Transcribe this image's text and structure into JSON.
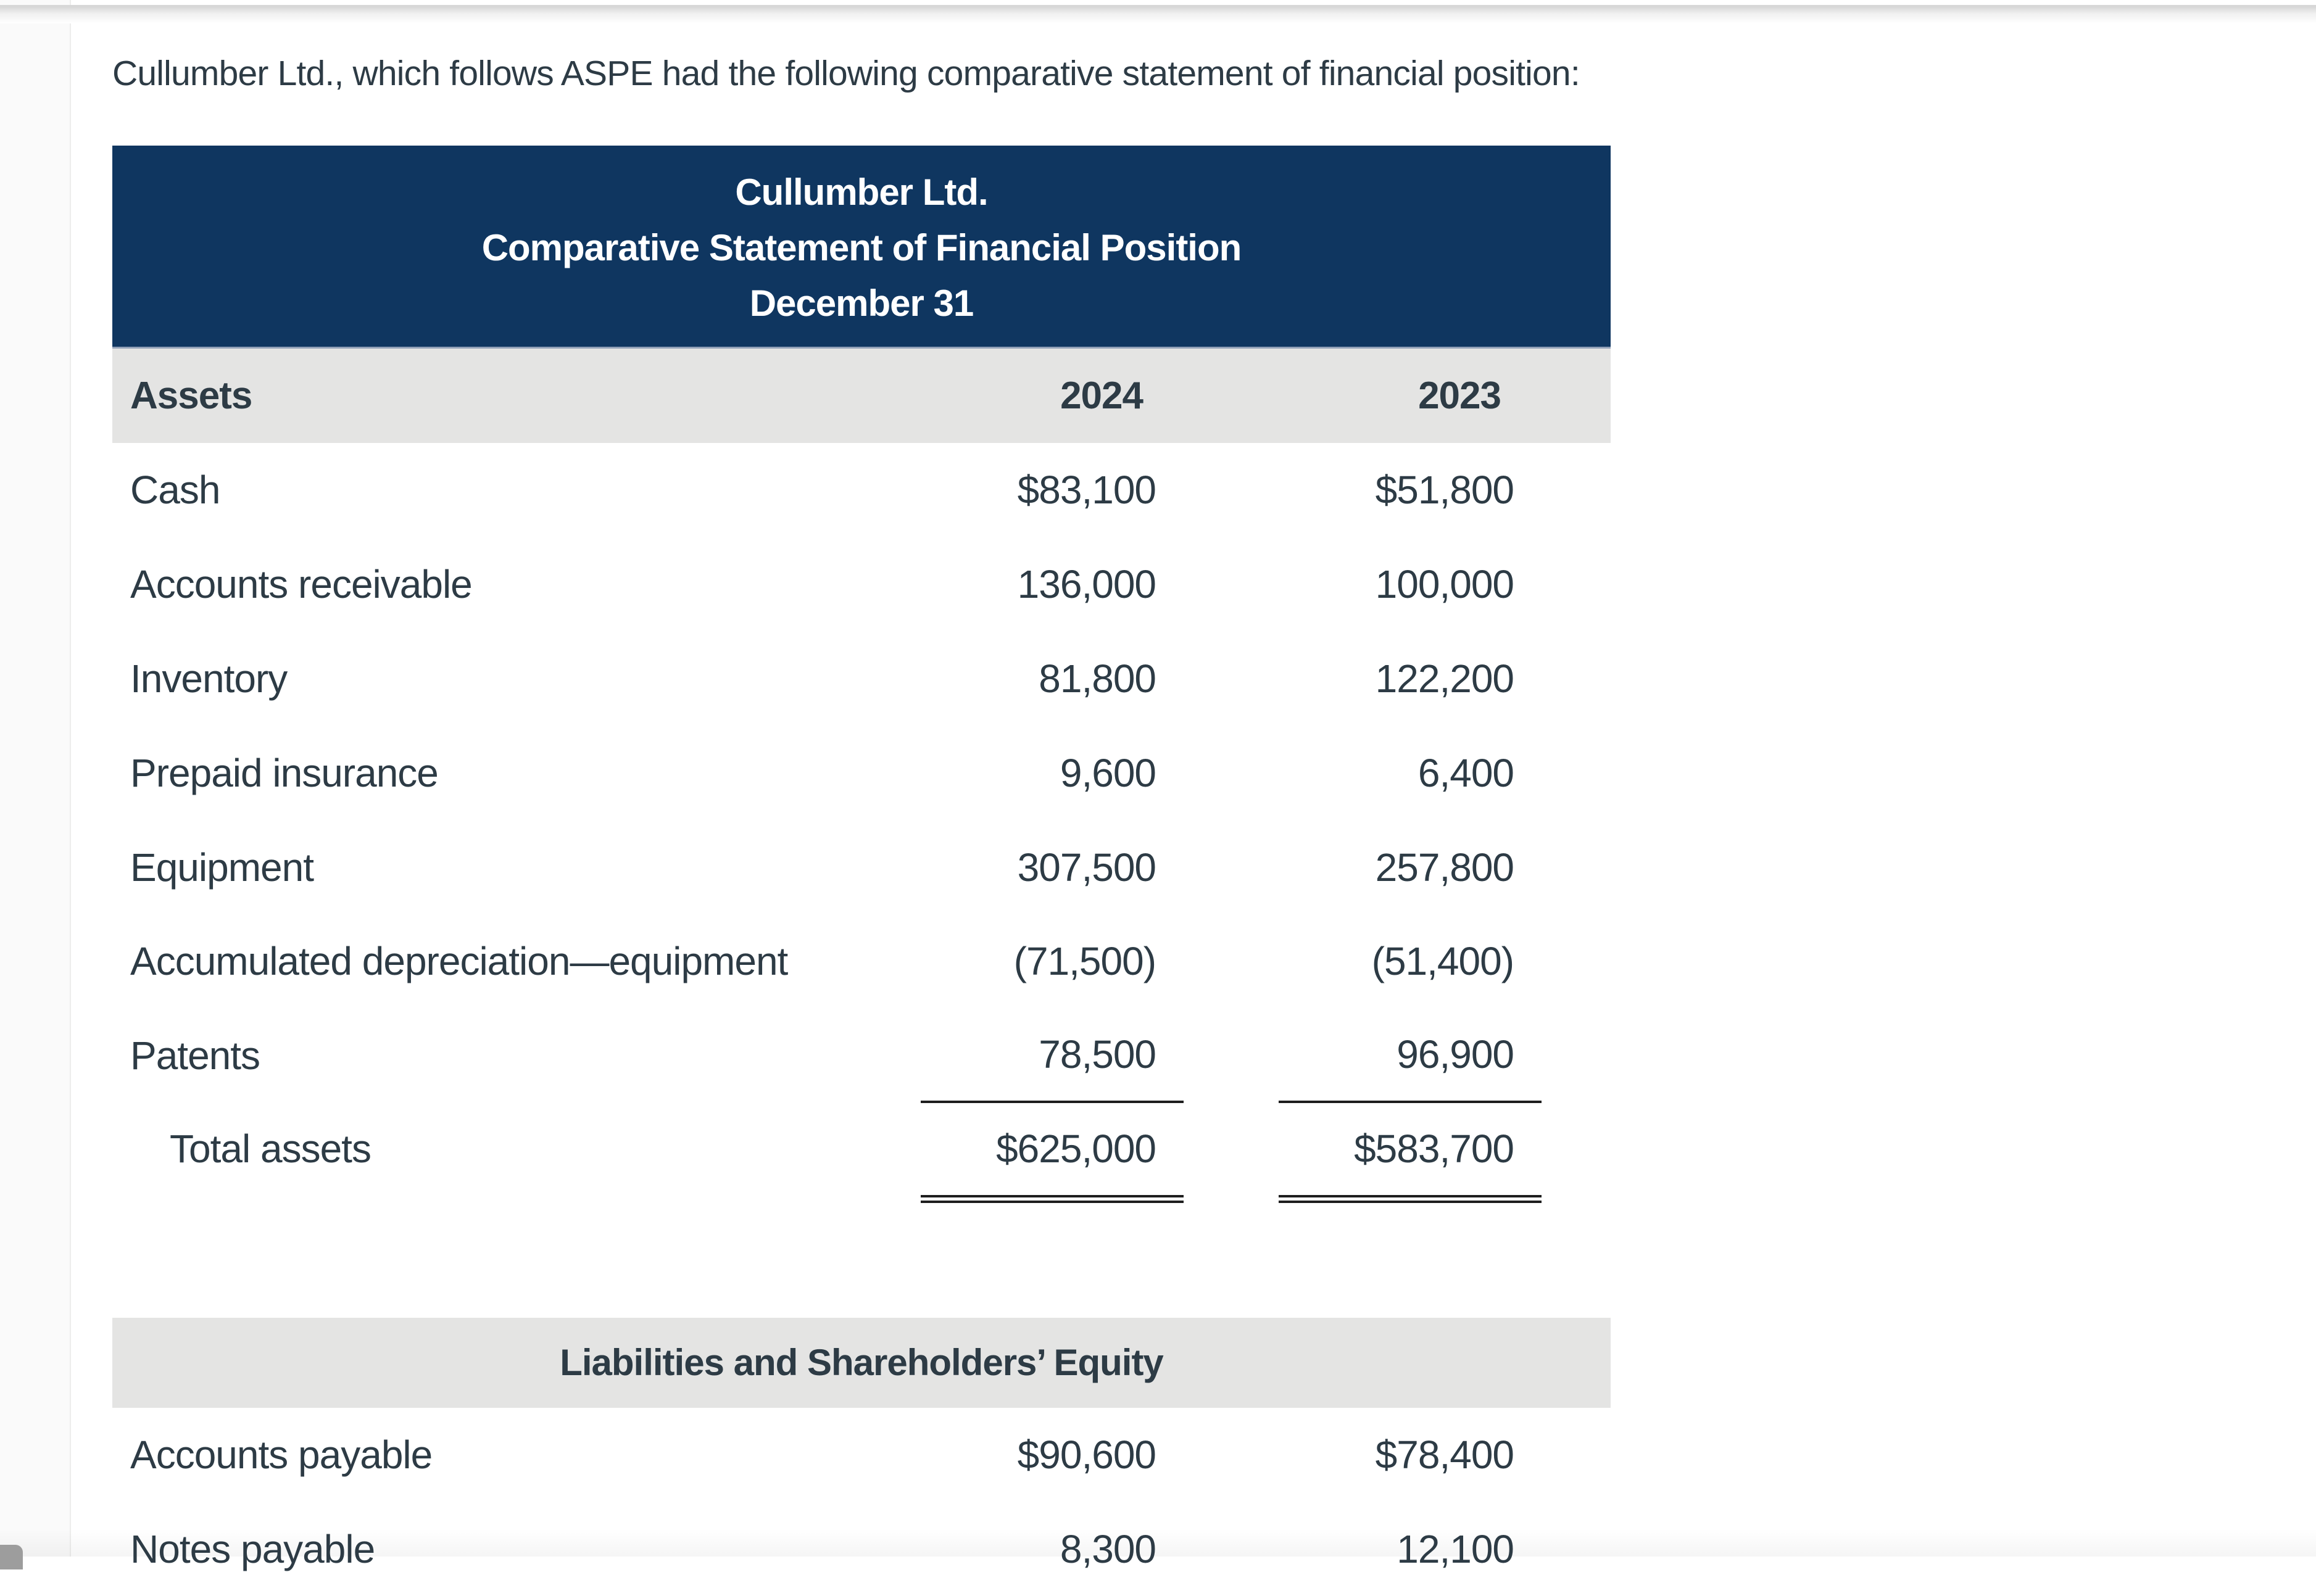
{
  "page": {
    "intro": "Cullumber Ltd., which follows ASPE had the following comparative statement of financial position:"
  },
  "statement": {
    "title_lines": [
      "Cullumber Ltd.",
      "Comparative Statement of Financial Position",
      "December 31"
    ],
    "columns": {
      "label": "Assets",
      "year1": "2024",
      "year2": "2023"
    },
    "assets_rows": [
      {
        "label": "Cash",
        "y2024": "$83,100",
        "y2023": "$51,800"
      },
      {
        "label": "Accounts receivable",
        "y2024": "136,000",
        "y2023": "100,000"
      },
      {
        "label": "Inventory",
        "y2024": "81,800",
        "y2023": "122,200"
      },
      {
        "label": "Prepaid insurance",
        "y2024": "9,600",
        "y2023": "6,400"
      },
      {
        "label": "Equipment",
        "y2024": "307,500",
        "y2023": "257,800"
      },
      {
        "label": "Accumulated depreciation—equipment",
        "y2024": "(71,500)",
        "y2023": "(51,400)"
      },
      {
        "label": "Patents",
        "y2024": "78,500",
        "y2023": "96,900"
      }
    ],
    "total_assets": {
      "label": "Total assets",
      "y2024": "$625,000",
      "y2023": "$583,700"
    },
    "liabilities_heading": "Liabilities and Shareholders’ Equity",
    "liabilities_rows": [
      {
        "label": "Accounts payable",
        "y2024": "$90,600",
        "y2023": "$78,400"
      },
      {
        "label": "Notes payable",
        "y2024": "8,300",
        "y2023": "12,100"
      }
    ],
    "colors": {
      "header_bg": "#0f3660",
      "band_bg": "#e4e4e3",
      "text": "#2d3b45",
      "rule": "#1e1e1e"
    }
  }
}
